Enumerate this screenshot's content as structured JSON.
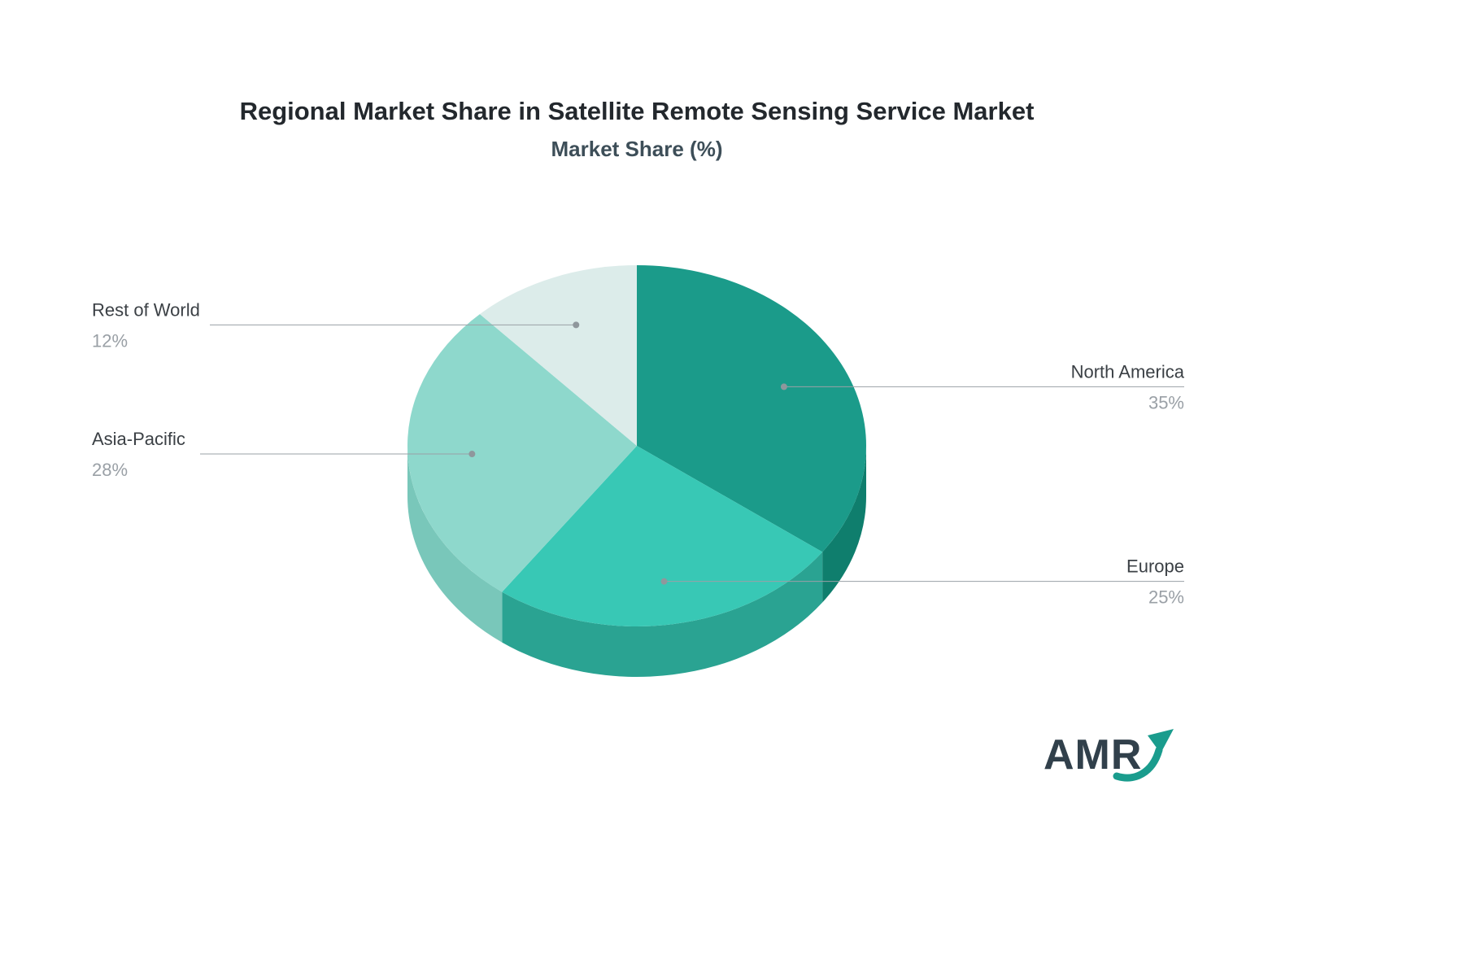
{
  "title": "Regional Market Share in Satellite Remote Sensing Service Market",
  "subtitle": "Market Share (%)",
  "logo": {
    "text": "AMR",
    "arrow_color": "#1a9c8d",
    "text_color": "#31404b"
  },
  "colors": {
    "label_name": "#3b4045",
    "label_value": "#9aa0a6",
    "leader_line": "#9aa0a6",
    "leader_dot": "#8f979c"
  },
  "chart_data": {
    "type": "pie",
    "style": "3d",
    "title": "Regional Market Share in Satellite Remote Sensing Service Market",
    "subtitle": "Market Share (%)",
    "unit": "%",
    "start_angle_deg": 0,
    "direction": "clockwise",
    "legend": false,
    "label_format": "name above, percent below, leader lines",
    "slices": [
      {
        "label": "North America",
        "value": 35,
        "display_value": "35%",
        "color": "#1b9b8a",
        "depth_color": "#0f7e6d"
      },
      {
        "label": "Europe",
        "value": 25,
        "display_value": "25%",
        "color": "#38c8b5",
        "depth_color": "#2aa392"
      },
      {
        "label": "Asia-Pacific",
        "value": 28,
        "display_value": "28%",
        "color": "#8ed8cc",
        "depth_color": "#79c7ba"
      },
      {
        "label": "Rest of World",
        "value": 12,
        "display_value": "12%",
        "color": "#dcecea",
        "depth_color": "#c4dcd8"
      }
    ]
  }
}
